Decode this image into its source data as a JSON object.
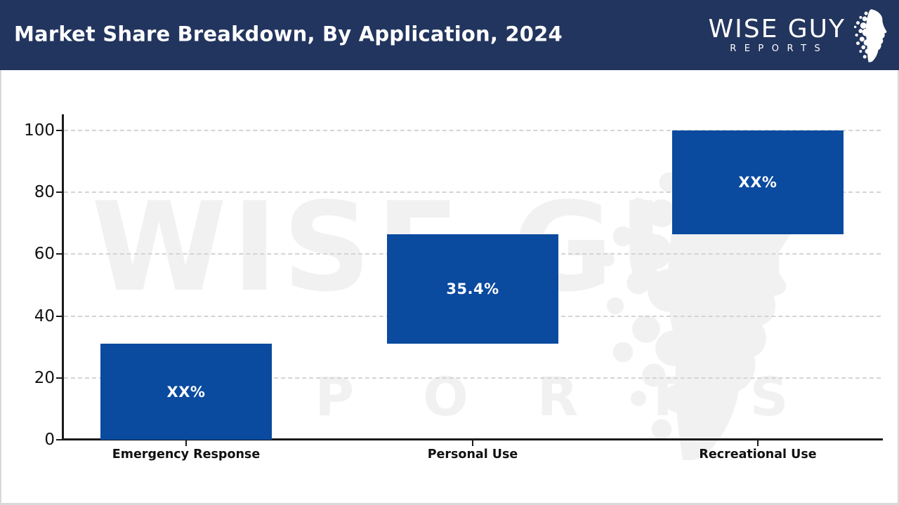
{
  "header": {
    "title": "Market Share Breakdown, By Application, 2024",
    "logo": {
      "wordmark": "WISE GUY",
      "subtitle": "REPORTS"
    }
  },
  "watermark": {
    "wordmark": "WISE GUY",
    "subtitle": "REPORTS"
  },
  "colors": {
    "header_bg": "#22355E",
    "bar_fill": "#0A4A9F",
    "bar_label": "#FFFFFF",
    "axis": "#1A1A1A",
    "grid": "#D4D4D4",
    "tick_label": "#111111",
    "watermark": "#F1F1F2",
    "page_border": "#D9D9D9"
  },
  "chart_data": {
    "type": "bar",
    "variant": "floating-segment-waterfall",
    "title": "Market Share Breakdown, By Application, 2024",
    "categories": [
      "Emergency Response",
      "Personal Use",
      "Recreational Use"
    ],
    "bars": [
      {
        "category": "Emergency Response",
        "start": 0,
        "end": 31,
        "label": "XX%"
      },
      {
        "category": "Personal Use",
        "start": 31,
        "end": 66.4,
        "label": "35.4%"
      },
      {
        "category": "Recreational Use",
        "start": 66.4,
        "end": 100,
        "label": "XX%"
      }
    ],
    "xlabel": "",
    "ylabel": "",
    "yticks": [
      0,
      20,
      40,
      60,
      80,
      100
    ],
    "ylim": [
      0,
      105
    ],
    "grid": "horizontal-dashed",
    "legend_position": "none"
  }
}
